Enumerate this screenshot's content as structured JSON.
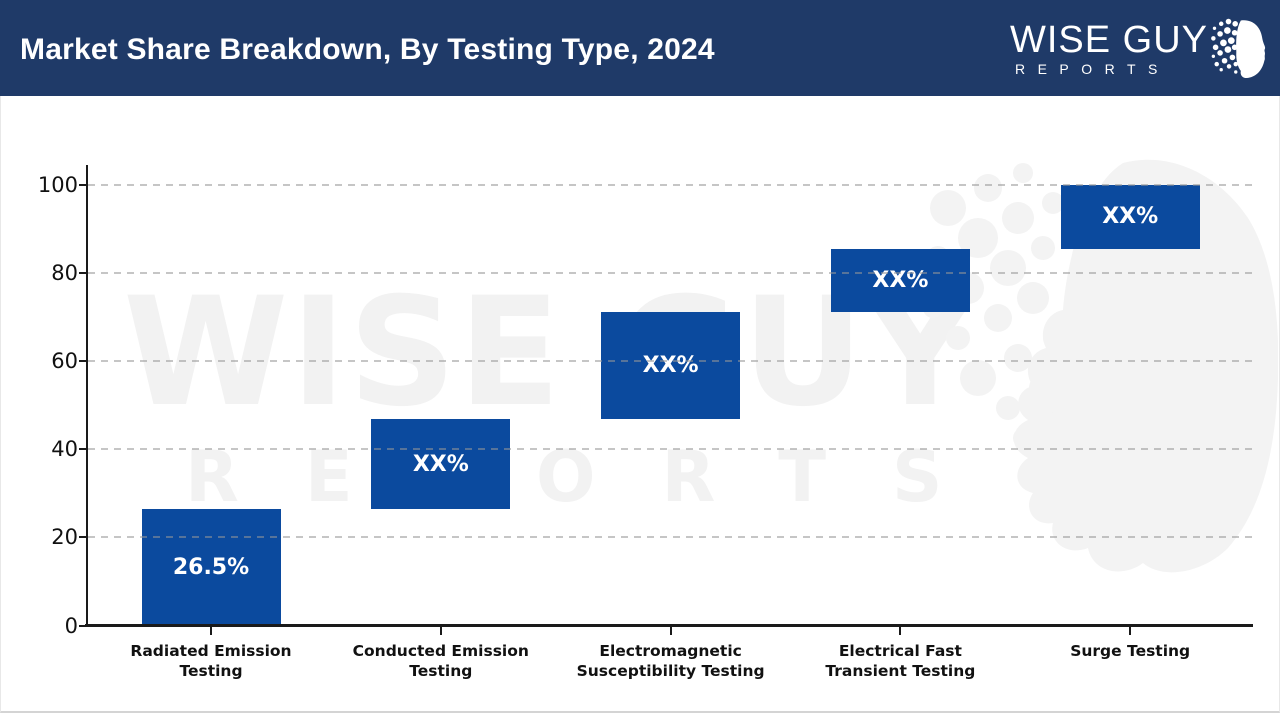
{
  "header": {
    "title": "Market Share Breakdown, By Testing Type, 2024",
    "logo_line1": "WISE GUY",
    "logo_line2": "REPORTS"
  },
  "watermark": {
    "line1": "WISE GUY",
    "line2": "REPORTS"
  },
  "chart_data": {
    "type": "bar",
    "subtype": "floating-waterfall",
    "title": "Market Share Breakdown, By Testing Type, 2024",
    "categories": [
      "Radiated Emission Testing",
      "Conducted Emission Testing",
      "Electromagnetic Susceptibility Testing",
      "Electrical Fast Transient Testing",
      "Surge Testing"
    ],
    "segments": [
      {
        "start": 0,
        "end": 26.5,
        "label": "26.5%"
      },
      {
        "start": 26.5,
        "end": 46.8,
        "label": "XX%"
      },
      {
        "start": 46.8,
        "end": 71.2,
        "label": "XX%"
      },
      {
        "start": 71.2,
        "end": 85.5,
        "label": "XX%"
      },
      {
        "start": 85.5,
        "end": 100,
        "label": "XX%"
      }
    ],
    "yticks": [
      0,
      20,
      40,
      60,
      80,
      100
    ],
    "ylim": [
      0,
      104
    ],
    "grid": {
      "axis": "y",
      "style": "dashed",
      "color": "#d9d9d9",
      "drawn_over_bars": true
    },
    "legend": "none",
    "bar_color": "#0b4a9e",
    "bar_label_color": "#ffffff",
    "axis_color": "#1a1a1a"
  },
  "colors": {
    "header_bg": "#1f3a68",
    "bar": "#0b4a9e",
    "watermark": "#f2f2f2",
    "frame_border": "#d4d4d4"
  }
}
